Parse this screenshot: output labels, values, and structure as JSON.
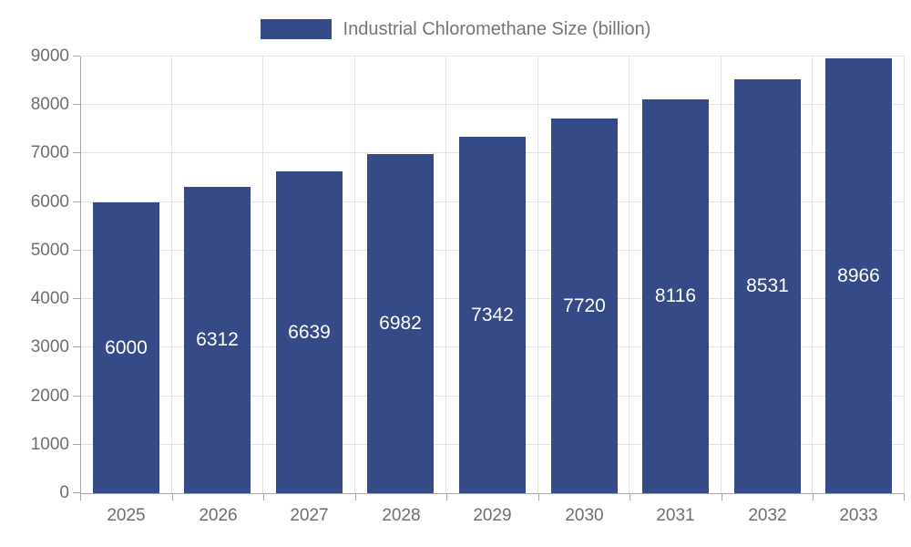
{
  "legend": {
    "label": "Industrial Chloromethane Size (billion)"
  },
  "colors": {
    "bar": "#354A86",
    "grid": "#E3E3E3",
    "axis": "#A6A6A6",
    "tick_label": "#6E6E6E",
    "legend_text": "#757575",
    "value_label": "#FFFFFF",
    "background": "#FFFFFF"
  },
  "chart_data": {
    "type": "bar",
    "title": "Industrial Chloromethane Size (billion)",
    "categories": [
      "2025",
      "2026",
      "2027",
      "2028",
      "2029",
      "2030",
      "2031",
      "2032",
      "2033"
    ],
    "series": [
      {
        "name": "Industrial Chloromethane Size (billion)",
        "values": [
          6000,
          6312,
          6639,
          6982,
          7342,
          7720,
          8116,
          8531,
          8966
        ]
      }
    ],
    "xlabel": "",
    "ylabel": "",
    "ylim": [
      0,
      9000
    ],
    "ytick_step": 1000,
    "grid": true,
    "legend_position": "top-center",
    "value_label_position": "inside-center"
  }
}
